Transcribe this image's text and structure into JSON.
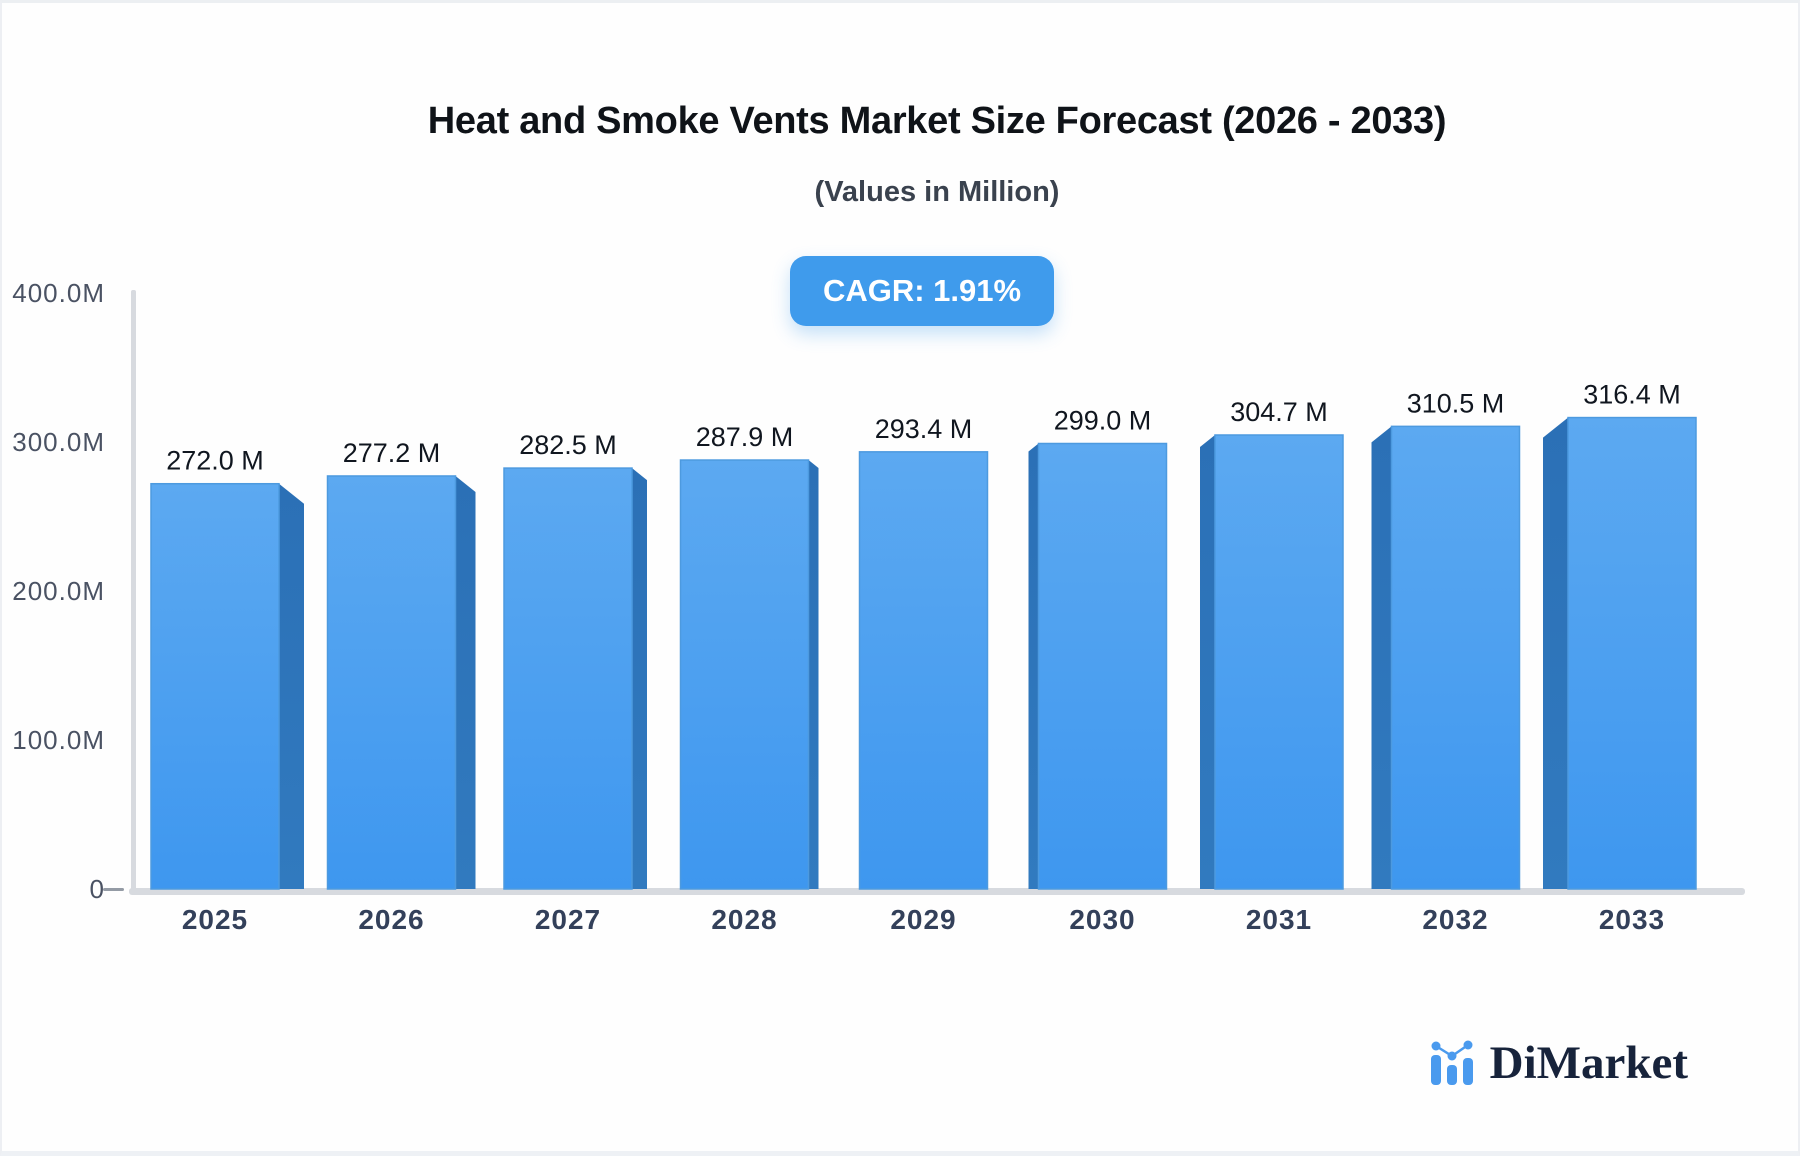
{
  "header": {
    "title": "Heat and Smoke Vents Market Size Forecast (2026 - 2033)",
    "subtitle": "(Values in Million)",
    "cagr_badge": "CAGR: 1.91%"
  },
  "brand": {
    "name": "DiMarket",
    "icon": "mini-bar-chart-icon"
  },
  "colors": {
    "badge_bg": "#3F9BEC",
    "badge_text": "#FFFFFF",
    "bar_face_top": "#5CA9F1",
    "bar_face_bottom": "#3E97EF",
    "bar_face_edge": "#4D9ADF",
    "bar_side_top": "#2B70B6",
    "bar_side_bottom": "#317ABF",
    "axis_line": "#D7DADF",
    "tick_dash": "#949BA5",
    "ytick_text": "#4A5263",
    "year_text": "#33405A",
    "value_text": "#10161F",
    "brand_blue": "#4A9AEE",
    "brand_navy": "#17233B"
  },
  "chart_data": {
    "type": "bar",
    "title": "Heat and Smoke Vents Market Size Forecast (2026 - 2033)",
    "subtitle": "(Values in Million)",
    "xlabel": "",
    "ylabel": "",
    "ylim": [
      0,
      400
    ],
    "grid": false,
    "legend": "none",
    "effect": "3d-perspective-center",
    "categories": [
      "2025",
      "2026",
      "2027",
      "2028",
      "2029",
      "2030",
      "2031",
      "2032",
      "2033"
    ],
    "values": [
      272.0,
      277.2,
      282.5,
      287.9,
      293.4,
      299.0,
      304.7,
      310.5,
      316.4
    ],
    "value_labels": [
      "272.0 M",
      "277.2 M",
      "282.5 M",
      "287.9 M",
      "293.4 M",
      "299.0 M",
      "304.7 M",
      "310.5 M",
      "316.4 M"
    ],
    "yticks": [
      {
        "label": "400.0M",
        "value": 400
      },
      {
        "label": "300.0M",
        "value": 300
      },
      {
        "label": "200.0M",
        "value": 200
      },
      {
        "label": "100.0M",
        "value": 100
      },
      {
        "label": "0",
        "value": 0
      }
    ]
  }
}
